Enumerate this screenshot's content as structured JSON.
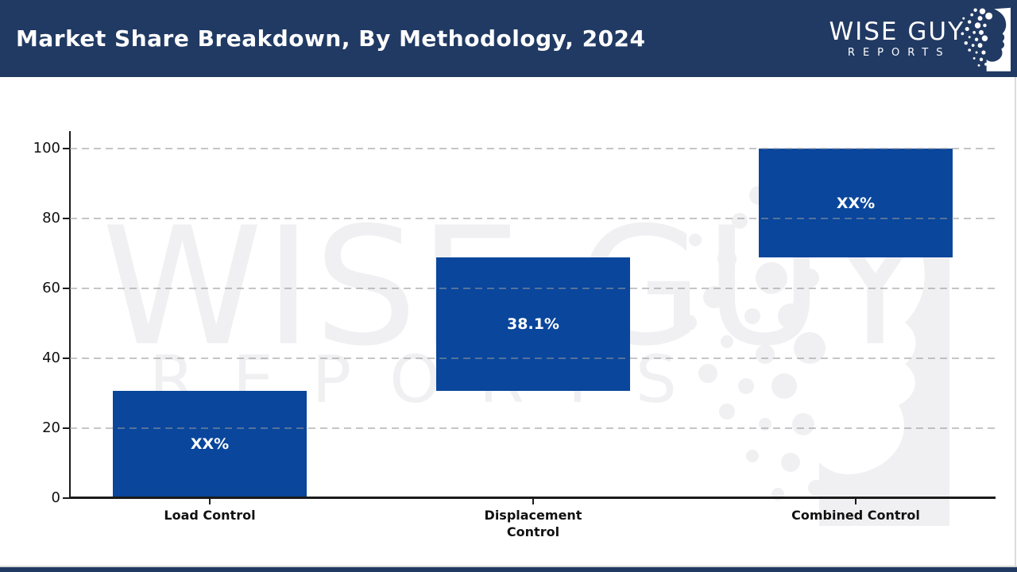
{
  "header": {
    "title": "Market Share Breakdown, By Methodology, 2024",
    "logo": {
      "main": "WISE GUY",
      "sub": "REPORTS"
    }
  },
  "watermark": {
    "main": "WISE GUY",
    "sub": "REPORTS",
    "face_icon": "dotted-face-profile"
  },
  "colors": {
    "header_bg": "#213a63",
    "footer_bg": "#213a63",
    "bar_fill": "#09469c",
    "axis": "#1a1a1a",
    "grid": "#9a9a9a",
    "bar_label_text": "#ffffff",
    "watermark": "#f0f0f2"
  },
  "chart_data": {
    "type": "bar",
    "subtype": "floating-segment-bars",
    "title": "Market Share Breakdown, By Methodology, 2024",
    "xlabel": "",
    "ylabel": "",
    "ylim": [
      0,
      100
    ],
    "yticks": [
      0,
      20,
      40,
      60,
      80,
      100
    ],
    "grid": "dashed-horizontal",
    "legend": null,
    "categories": [
      "Load Control",
      "Displacement Control",
      "Combined Control"
    ],
    "bars": [
      {
        "category": "Load Control",
        "start": 0,
        "end": 30.7,
        "value_label": "XX%"
      },
      {
        "category": "Displacement Control",
        "start": 30.7,
        "end": 68.8,
        "value_label": "38.1%"
      },
      {
        "category": "Combined Control",
        "start": 68.8,
        "end": 100,
        "value_label": "XX%"
      }
    ]
  }
}
